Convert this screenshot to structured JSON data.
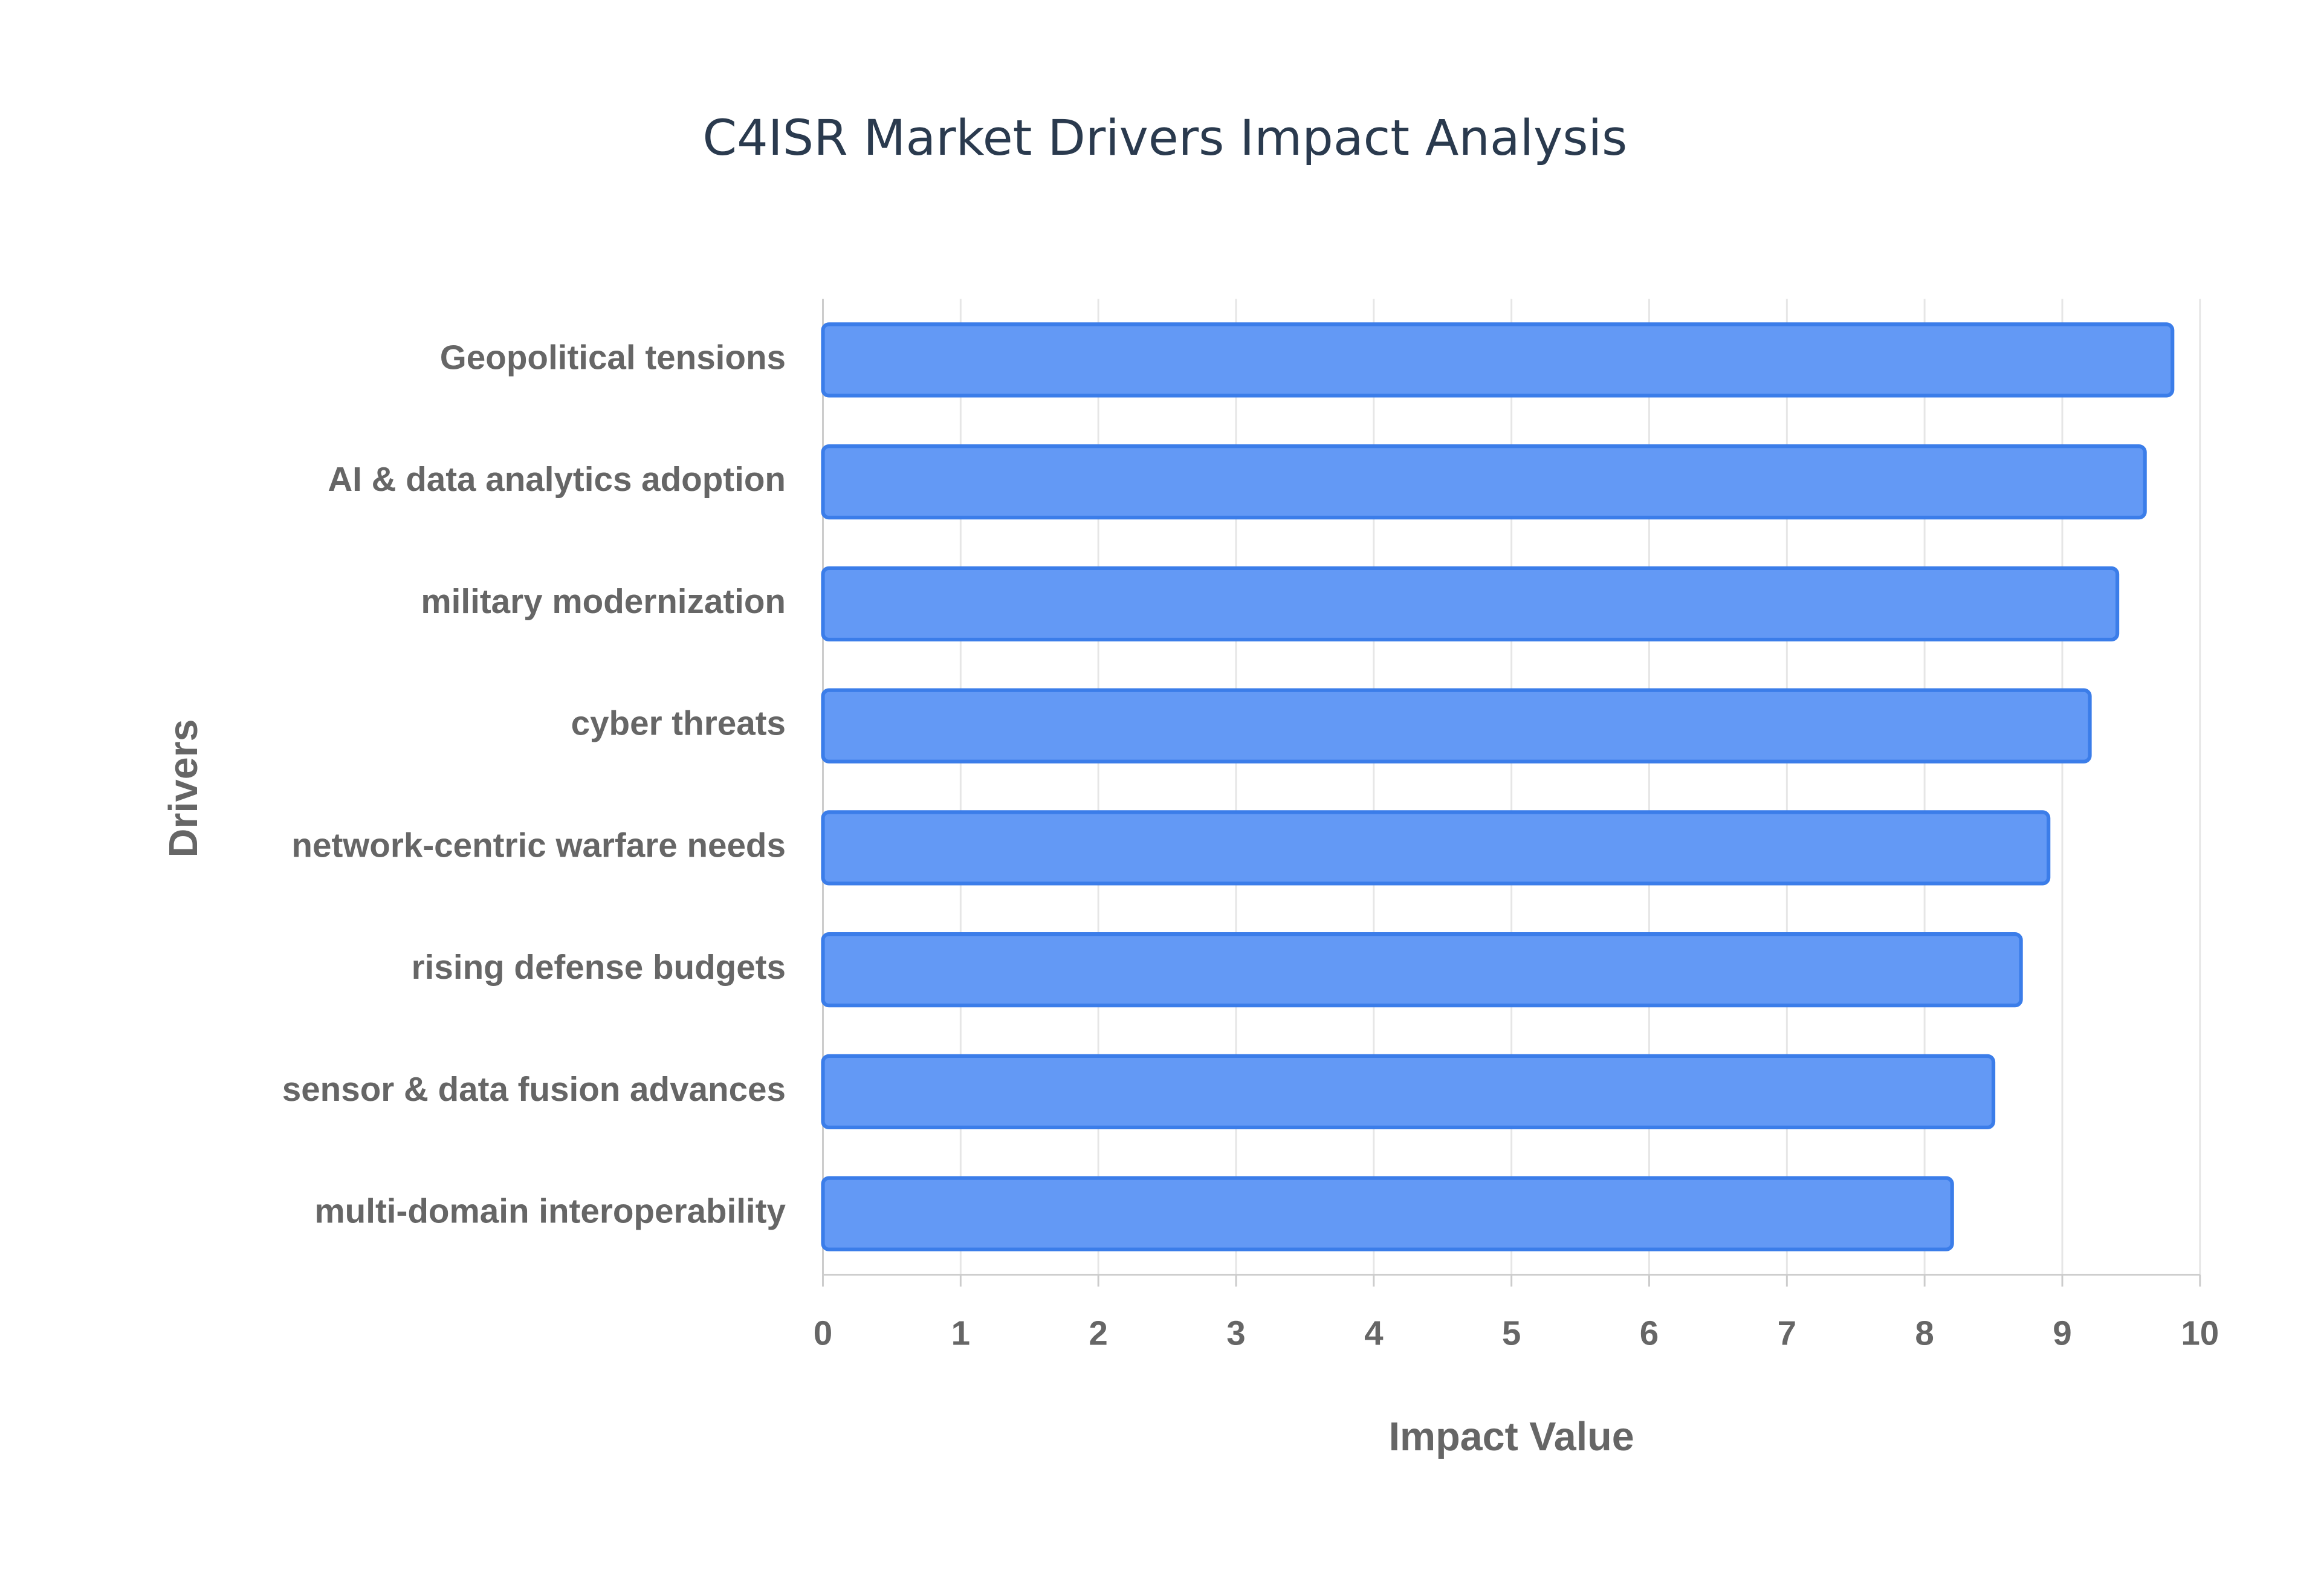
{
  "chart_data": {
    "type": "bar",
    "orientation": "horizontal",
    "title": "C4ISR Market Drivers Impact Analysis",
    "x_label": "Impact Value",
    "y_label": "Drivers",
    "categories": [
      "Geopolitical tensions",
      "AI & data analytics adoption",
      "military modernization",
      "cyber threats",
      "network-centric warfare needs",
      "rising defense budgets",
      "sensor & data fusion advances",
      "multi-domain interoperability"
    ],
    "values": [
      9.8,
      9.6,
      9.4,
      9.2,
      8.9,
      8.7,
      8.5,
      8.2
    ],
    "color": "#6399f5",
    "xlim": [
      0,
      10
    ],
    "xticks": [
      0,
      1,
      2,
      3,
      4,
      5,
      6,
      7,
      8,
      9,
      10
    ],
    "grid": true
  }
}
